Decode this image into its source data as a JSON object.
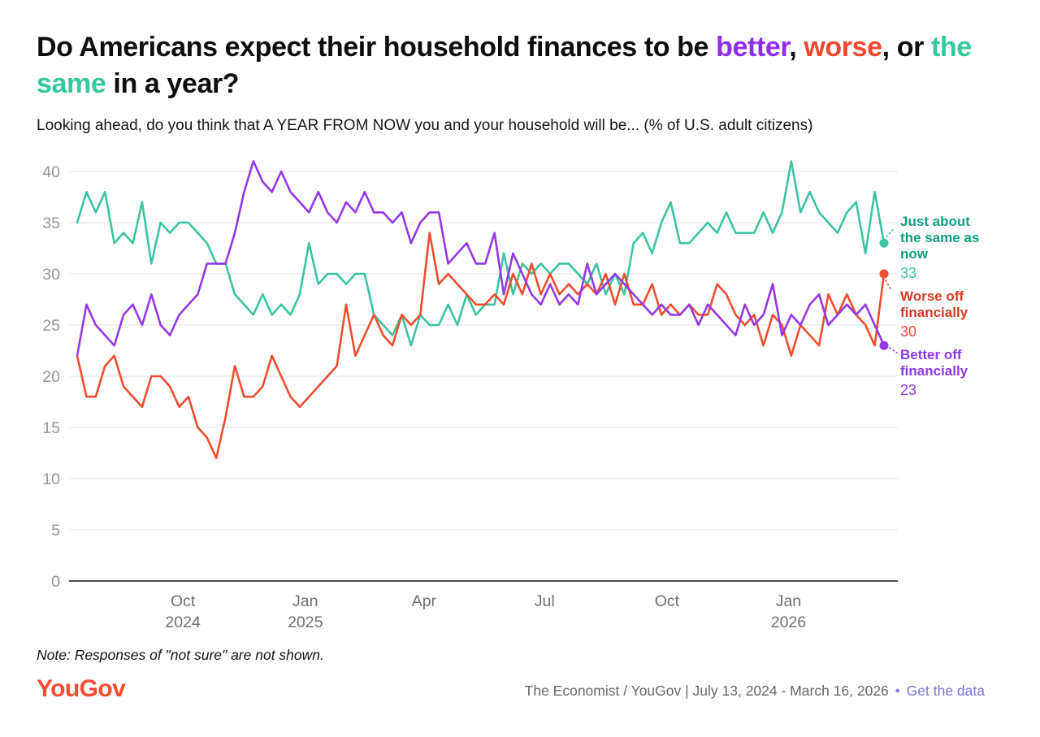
{
  "title": {
    "segments": [
      {
        "text": "Do Americans expect their household finances to be ",
        "color": "#0d0d0d"
      },
      {
        "text": "better",
        "color": "#8f2ee8"
      },
      {
        "text": ", ",
        "color": "#0d0d0d"
      },
      {
        "text": "worse",
        "color": "#f0482e"
      },
      {
        "text": ", or ",
        "color": "#0d0d0d"
      },
      {
        "text": "the same",
        "color": "#35c79e"
      },
      {
        "text": " in a year?",
        "color": "#0d0d0d"
      }
    ]
  },
  "subtitle": "Looking ahead, do you think that A YEAR FROM NOW you and your household will be... (% of U.S. adult citizens)",
  "chart_data": {
    "type": "line",
    "title": "Do Americans expect their household finances to be better, worse, or the same in a year?",
    "subtitle": "Looking ahead, do you think that A YEAR FROM NOW you and your household will be... (% of U.S. adult citizens)",
    "xlabel": "",
    "ylabel": "",
    "x_start_label": "July 13, 2024",
    "x_end_label": "March 16, 2026",
    "ylim": [
      0,
      40
    ],
    "yticks": [
      0,
      5,
      10,
      15,
      20,
      25,
      30,
      35,
      40
    ],
    "grid": true,
    "legend_position": "right",
    "xticks": [
      {
        "label": "Oct",
        "sub": "2024",
        "i": 11.4
      },
      {
        "label": "Jan",
        "sub": "2025",
        "i": 24.6
      },
      {
        "label": "Apr",
        "i": 37.4
      },
      {
        "label": "Jul",
        "i": 50.4
      },
      {
        "label": "Oct",
        "i": 63.6
      },
      {
        "label": "Jan",
        "sub": "2026",
        "i": 76.7
      }
    ],
    "series": [
      {
        "name": "Just about the same as now",
        "color": "#3bc3a2",
        "label_color": "#0da081",
        "end_value": 33,
        "label_offset": -36,
        "values": [
          35,
          38,
          36,
          38,
          33,
          34,
          33,
          37,
          31,
          35,
          34,
          35,
          35,
          34,
          33,
          31,
          31,
          28,
          27,
          26,
          28,
          26,
          27,
          26,
          28,
          33,
          29,
          30,
          30,
          29,
          30,
          30,
          26,
          25,
          24,
          26,
          23,
          26,
          25,
          25,
          27,
          25,
          28,
          26,
          27,
          27,
          32,
          28,
          31,
          30,
          31,
          30,
          31,
          31,
          30,
          29,
          31,
          28,
          30,
          28,
          33,
          34,
          32,
          35,
          37,
          33,
          33,
          34,
          35,
          34,
          36,
          34,
          34,
          34,
          36,
          34,
          36,
          41,
          36,
          38,
          36,
          35,
          34,
          36,
          37,
          32,
          38,
          33
        ]
      },
      {
        "name": "Worse off financially",
        "color": "#f04d30",
        "label_color": "#d93a1f",
        "end_value": 30,
        "label_offset": 18,
        "values": [
          22,
          18,
          18,
          21,
          22,
          19,
          18,
          17,
          20,
          20,
          19,
          17,
          18,
          15,
          14,
          12,
          16,
          21,
          18,
          18,
          19,
          22,
          20,
          18,
          17,
          18,
          19,
          20,
          21,
          27,
          22,
          24,
          26,
          24,
          23,
          26,
          25,
          26,
          34,
          29,
          30,
          29,
          28,
          27,
          27,
          28,
          27,
          30,
          28,
          31,
          28,
          30,
          28,
          29,
          28,
          29,
          28,
          30,
          27,
          30,
          27,
          27,
          29,
          26,
          27,
          26,
          27,
          26,
          26,
          29,
          28,
          26,
          25,
          26,
          23,
          26,
          25,
          22,
          25,
          24,
          23,
          28,
          26,
          28,
          26,
          25,
          23,
          30
        ]
      },
      {
        "name": "Better off financially",
        "color": "#9438e6",
        "label_color": "#9036e2",
        "end_value": 23,
        "label_offset": 2,
        "values": [
          22,
          27,
          25,
          24,
          23,
          26,
          27,
          25,
          28,
          25,
          24,
          26,
          27,
          28,
          31,
          31,
          31,
          34,
          38,
          41,
          39,
          38,
          40,
          38,
          37,
          36,
          38,
          36,
          35,
          37,
          36,
          38,
          36,
          36,
          35,
          36,
          33,
          35,
          36,
          36,
          31,
          32,
          33,
          31,
          31,
          34,
          28,
          32,
          30,
          28,
          27,
          29,
          27,
          28,
          27,
          31,
          28,
          29,
          30,
          29,
          28,
          27,
          26,
          27,
          26,
          26,
          27,
          25,
          27,
          26,
          25,
          24,
          27,
          25,
          26,
          29,
          24,
          26,
          25,
          27,
          28,
          25,
          26,
          27,
          26,
          27,
          25,
          23
        ]
      }
    ]
  },
  "note": "Note: Responses of \"not sure\" are not shown.",
  "footer": {
    "logo": "YouGov",
    "credit": "The Economist / YouGov | July 13, 2024 - March 16, 2026",
    "separator": "•",
    "link": "Get the data"
  }
}
